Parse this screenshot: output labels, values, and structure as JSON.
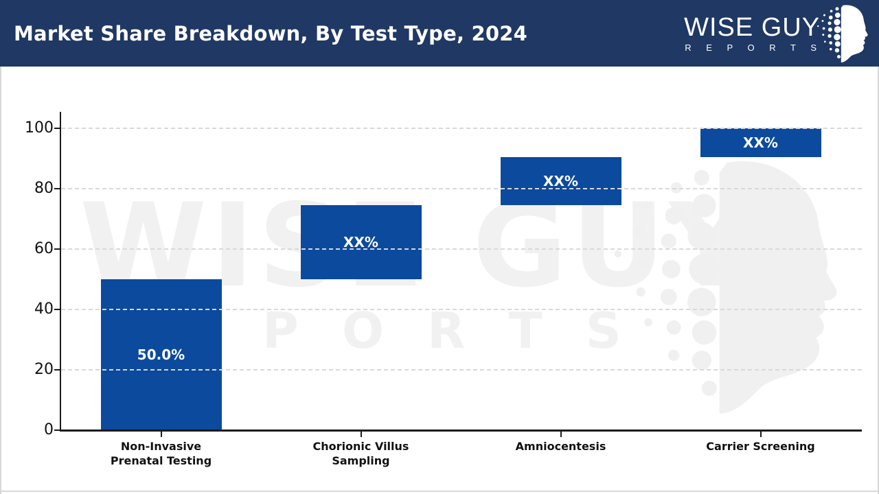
{
  "header": {
    "title": "Market Share Breakdown, By Test Type, 2024",
    "logo": {
      "name": "WISE GUY",
      "sub": "R E P O R T S"
    }
  },
  "watermark": {
    "line1": "WISE GUY",
    "line2": "P O R T S"
  },
  "colors": {
    "header_bg": "#1f3864",
    "bar": "#0c4a9d",
    "gridline": "#d9d9d9",
    "axis": "#1a1a1a",
    "watermark": "#f1f1f1"
  },
  "chart_data": {
    "type": "bar",
    "subtype": "waterfall",
    "title": "Market Share Breakdown, By Test Type, 2024",
    "categories": [
      "Non-Invasive Prenatal Testing",
      "Chorionic Villus Sampling",
      "Amniocentesis",
      "Carrier Screening"
    ],
    "segments": [
      {
        "category": "Non-Invasive Prenatal Testing",
        "label_lines": [
          "Non-Invasive",
          "Prenatal Testing"
        ],
        "start": 0,
        "end": 50,
        "value": 50.0,
        "value_label": "50.0%"
      },
      {
        "category": "Chorionic Villus Sampling",
        "label_lines": [
          "Chorionic Villus",
          "Sampling"
        ],
        "start": 50,
        "end": 74.5,
        "value": 24.5,
        "value_label": "XX%"
      },
      {
        "category": "Amniocentesis",
        "label_lines": [
          "Amniocentesis"
        ],
        "start": 74.5,
        "end": 90.5,
        "value": 16,
        "value_label": "XX%"
      },
      {
        "category": "Carrier Screening",
        "label_lines": [
          "Carrier Screening"
        ],
        "start": 90.5,
        "end": 100,
        "value": 9.5,
        "value_label": "XX%"
      }
    ],
    "y_ticks": [
      0,
      20,
      40,
      60,
      80,
      100
    ],
    "ylim": [
      0,
      100
    ],
    "grid": "dashed horizontal, drawn over bars",
    "legend": "none",
    "bar_color": "#0c4a9d"
  }
}
